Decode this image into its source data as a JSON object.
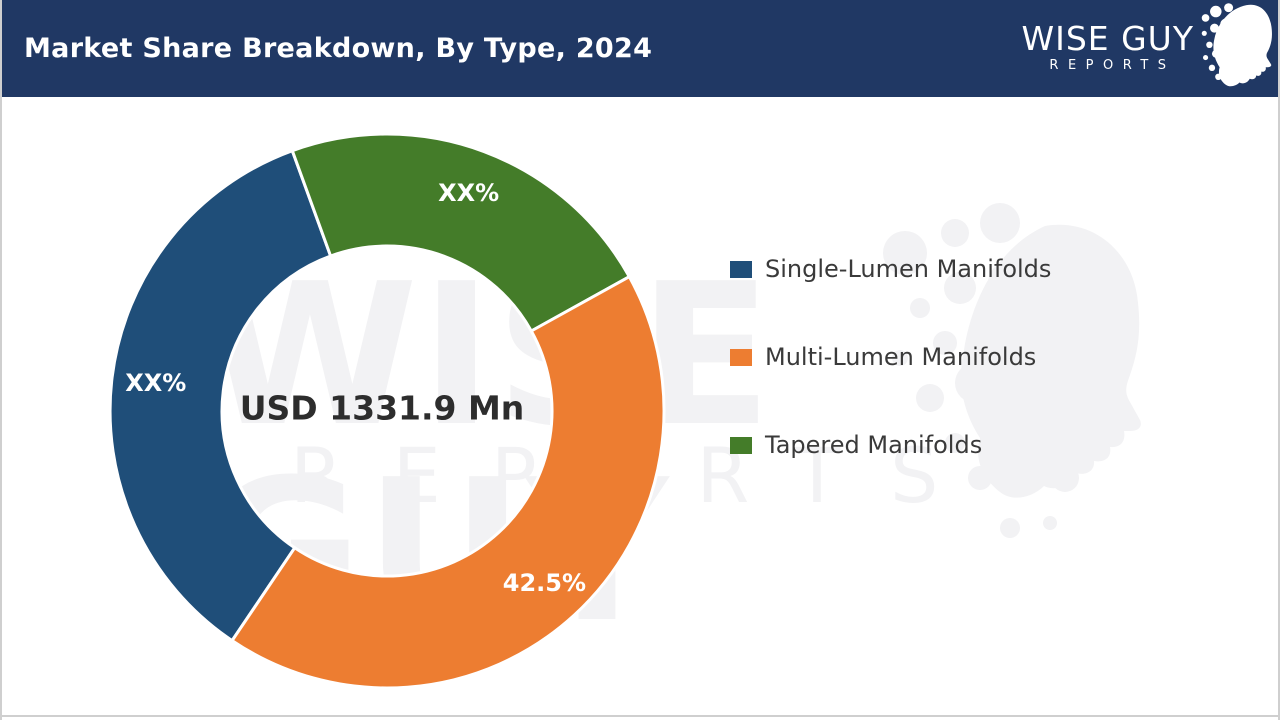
{
  "header": {
    "title": "Market Share Breakdown, By Type, 2024",
    "logo": {
      "line1": "WISE GUY",
      "line2": "REPORTS"
    }
  },
  "watermark": {
    "line1": "WISE GUY",
    "line2": "REPORTS"
  },
  "chart_data": {
    "type": "pie",
    "subtype": "donut",
    "title": "Market Share Breakdown, By Type, 2024",
    "center_label": "USD 1331.9 Mn",
    "legend_position": "right",
    "start_angle_deg": 214,
    "draw_order": [
      0,
      2,
      1
    ],
    "segments": [
      {
        "label": "Single-Lumen Manifolds",
        "display_label": "XX%",
        "value_pct": 35,
        "color": "#1f4e79"
      },
      {
        "label": "Multi-Lumen Manifolds",
        "display_label": "42.5%",
        "value_pct": 42.5,
        "color": "#ed7d31"
      },
      {
        "label": "Tapered Manifolds",
        "display_label": "XX%",
        "value_pct": 22.5,
        "color": "#447c29"
      }
    ]
  },
  "colors": {
    "header_bg": "#203864",
    "title_text": "#ffffff",
    "legend_text": "#3a3a3a",
    "center_text": "#2d2d2d",
    "slice_label_text": "#ffffff",
    "watermark": "#f2f2f4",
    "frame_border": "#cfcfcf",
    "background": "#ffffff"
  }
}
